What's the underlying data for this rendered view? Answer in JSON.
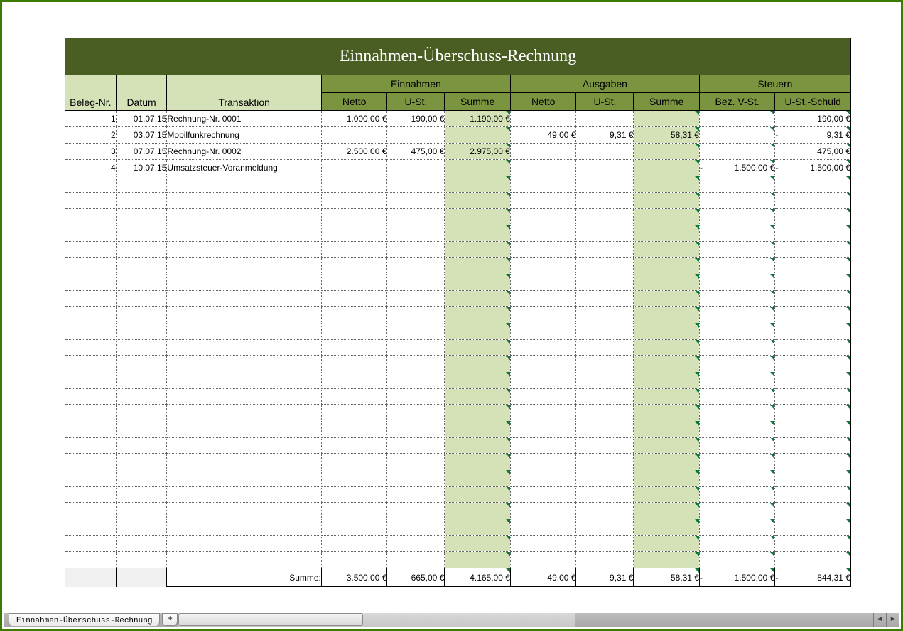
{
  "title": "Einnahmen-Überschuss-Rechnung",
  "colors": {
    "dark_header_bg": "#4a5d23",
    "group_accent_bg": "#7a9440",
    "light_bg": "#d5e2b8",
    "frame_border": "#3d7a00",
    "cell_flag": "#0a7a3a"
  },
  "groups": {
    "einnahmen": "Einnahmen",
    "ausgaben": "Ausgaben",
    "steuern": "Steuern"
  },
  "columns": {
    "beleg": "Beleg-Nr.",
    "datum": "Datum",
    "trans": "Transaktion",
    "e_netto": "Netto",
    "e_ust": "U-St.",
    "e_summe": "Summe",
    "a_netto": "Netto",
    "a_ust": "U-St.",
    "a_summe": "Summe",
    "vst": "Bez. V-St.",
    "schuld": "U-St.-Schuld"
  },
  "rows": [
    {
      "beleg": "1",
      "datum": "01.07.15",
      "trans": "Rechnung-Nr. 0001",
      "e_netto": "1.000,00 €",
      "e_ust": "190,00 €",
      "e_summe": "1.190,00 €",
      "a_netto": "",
      "a_ust": "",
      "a_summe": "",
      "vst": "",
      "schuld": "190,00 €",
      "schuld_neg": false
    },
    {
      "beleg": "2",
      "datum": "03.07.15",
      "trans": "Mobilfunkrechnung",
      "e_netto": "",
      "e_ust": "",
      "e_summe": "",
      "a_netto": "49,00 €",
      "a_ust": "9,31 €",
      "a_summe": "58,31 €",
      "vst": "",
      "schuld": "9,31 €",
      "schuld_neg": true
    },
    {
      "beleg": "3",
      "datum": "07.07.15",
      "trans": "Rechnung-Nr. 0002",
      "e_netto": "2.500,00 €",
      "e_ust": "475,00 €",
      "e_summe": "2.975,00 €",
      "a_netto": "",
      "a_ust": "",
      "a_summe": "",
      "vst": "",
      "schuld": "475,00 €",
      "schuld_neg": false
    },
    {
      "beleg": "4",
      "datum": "10.07.15",
      "trans": "Umsatzsteuer-Voranmeldung",
      "e_netto": "",
      "e_ust": "",
      "e_summe": "",
      "a_netto": "",
      "a_ust": "",
      "a_summe": "",
      "vst": "1.500,00 €",
      "vst_neg": true,
      "schuld": "1.500,00 €",
      "schuld_neg": true
    }
  ],
  "empty_row_count": 24,
  "totals": {
    "label": "Summe:",
    "e_netto": "3.500,00 €",
    "e_ust": "665,00 €",
    "e_summe": "4.165,00 €",
    "a_netto": "49,00 €",
    "a_ust": "9,31 €",
    "a_summe": "58,31 €",
    "vst": "1.500,00 €",
    "vst_neg": true,
    "schuld": "844,31 €",
    "schuld_neg": true
  },
  "tab": {
    "name": "Einnahmen-Überschuss-Rechnung",
    "add": "+"
  }
}
